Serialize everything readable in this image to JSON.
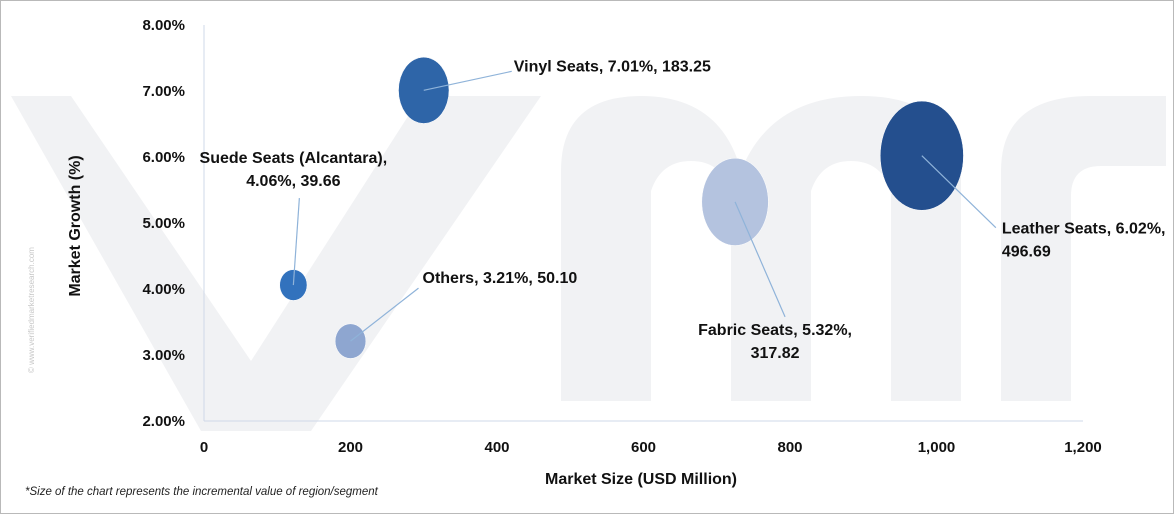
{
  "chart_data": {
    "type": "scatter",
    "bubble": true,
    "xlabel": "Market Size (USD Million)",
    "ylabel": "Market Growth (%)",
    "xlim": [
      0,
      1200
    ],
    "ylim": [
      2.0,
      8.0
    ],
    "x_ticks": [
      "0",
      "200",
      "400",
      "600",
      "800",
      "1,000",
      "1,200"
    ],
    "y_ticks": [
      "2.00%",
      "3.00%",
      "4.00%",
      "5.00%",
      "6.00%",
      "7.00%",
      "8.00%"
    ],
    "grid": false,
    "legend": "none",
    "points": [
      {
        "label": "Vinyl Seats, 7.01%, 183.25",
        "x": 300,
        "y": 7.01,
        "bubble_value": 183.25,
        "color": "#2e65a8"
      },
      {
        "label": "Suede Seats (Alcantara), 4.06%, 39.66",
        "x": 122,
        "y": 4.06,
        "bubble_value": 39.66,
        "color": "#3272bd"
      },
      {
        "label": "Others, 3.21%, 50.10",
        "x": 200,
        "y": 3.21,
        "bubble_value": 50.1,
        "color": "#8ea6d0"
      },
      {
        "label": "Fabric Seats, 5.32%, 317.82",
        "x": 725,
        "y": 5.32,
        "bubble_value": 317.82,
        "color": "#b4c3df"
      },
      {
        "label": "Leather Seats, 6.02%, 496.69",
        "x": 980,
        "y": 6.02,
        "bubble_value": 496.69,
        "color": "#244f8e"
      }
    ],
    "footnote": "*Size of the chart represents the incremental value of region/segment"
  },
  "watermark": {
    "side_text": "© www.verifiedmarketresearch.com",
    "color": "#f1f2f4"
  }
}
